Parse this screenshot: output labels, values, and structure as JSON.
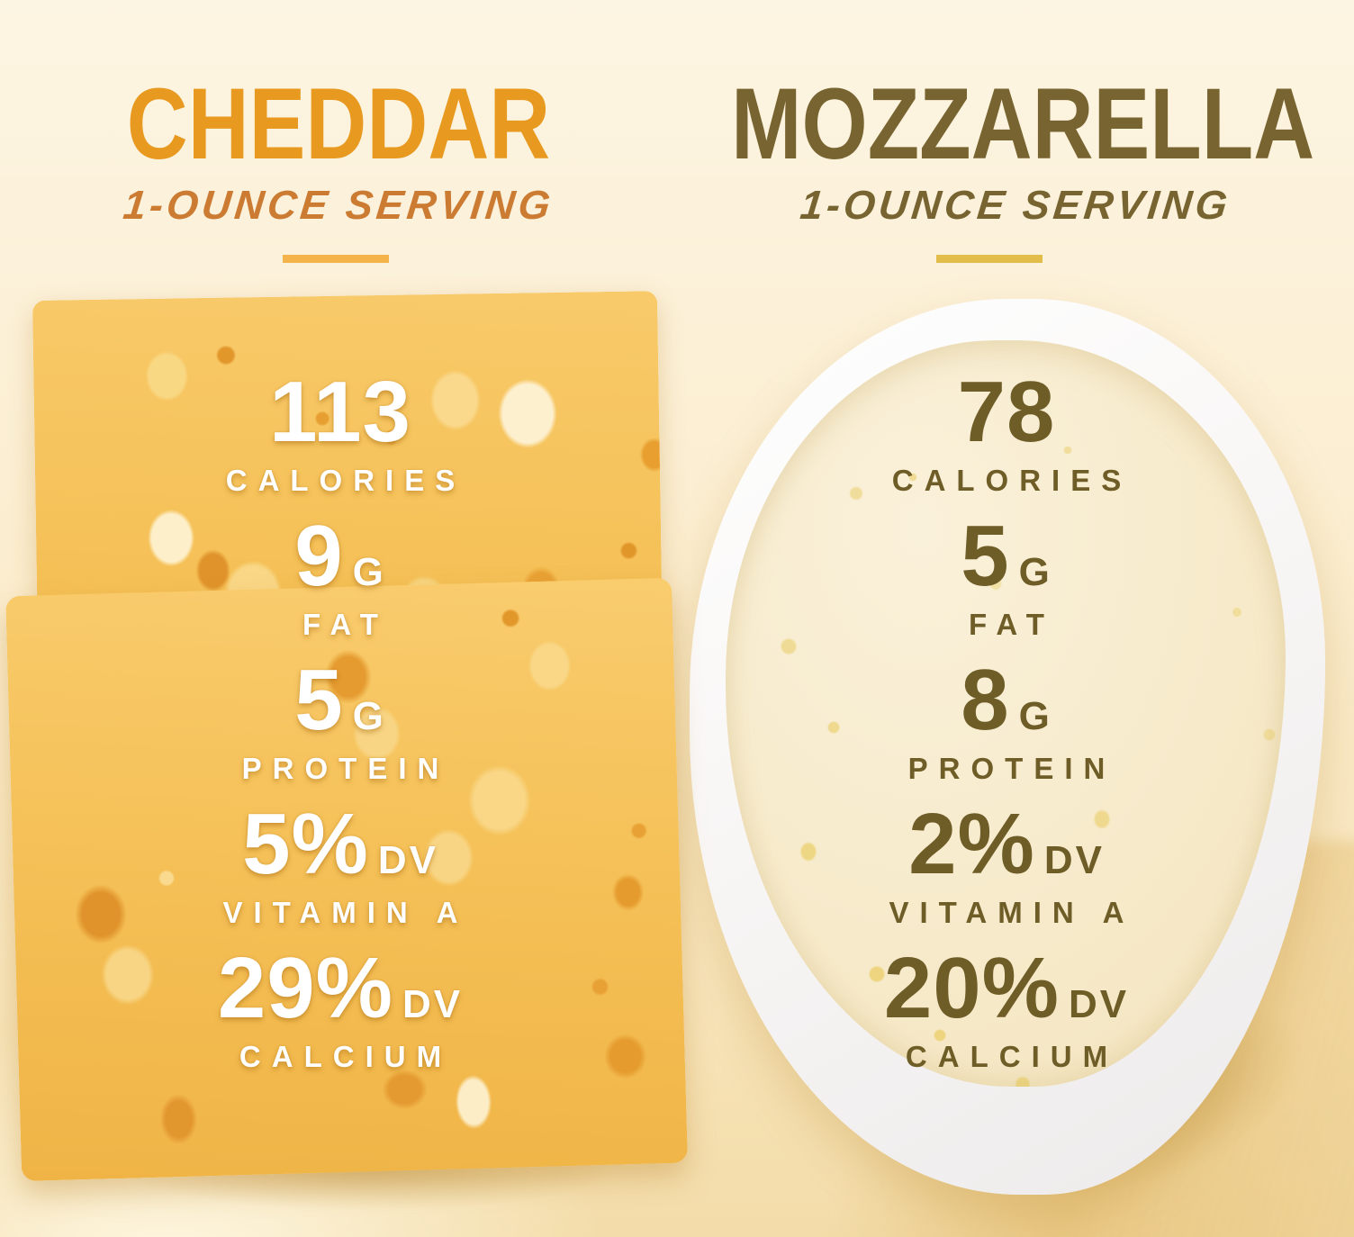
{
  "chart_data": {
    "type": "table",
    "title": "Cheddar vs Mozzarella nutrition, 1-ounce serving",
    "categories": [
      "Calories",
      "Fat (g)",
      "Protein (g)",
      "Vitamin A (% DV)",
      "Calcium (% DV)"
    ],
    "series": [
      {
        "name": "Cheddar",
        "values": [
          113,
          9,
          5,
          5,
          29
        ]
      },
      {
        "name": "Mozzarella",
        "values": [
          78,
          5,
          8,
          2,
          20
        ]
      }
    ],
    "legend_position": "none",
    "grid": false
  },
  "panels": {
    "cheddar": {
      "title": "CHEDDAR",
      "subtitle": "1-OUNCE SERVING",
      "stats": [
        {
          "value": "113",
          "unit": "",
          "label": "CALORIES"
        },
        {
          "value": "9",
          "unit": "G",
          "label": "FAT"
        },
        {
          "value": "5",
          "unit": "G",
          "label": "PROTEIN"
        },
        {
          "value": "5%",
          "unit": "DV",
          "label": "VITAMIN A"
        },
        {
          "value": "29%",
          "unit": "DV",
          "label": "CALCIUM"
        }
      ],
      "colors": {
        "title": "#E8991F",
        "subtitle": "#CC7B33",
        "underline": "#F5B44B",
        "stat_text": "#FFFFFF",
        "cheese_body": "#F4BE52",
        "cheese_hole_dark": "#E2972B",
        "cheese_hole_light": "#F9D786"
      }
    },
    "mozzarella": {
      "title": "MOZZARELLA",
      "subtitle": "1-OUNCE SERVING",
      "stats": [
        {
          "value": "78",
          "unit": "",
          "label": "CALORIES"
        },
        {
          "value": "5",
          "unit": "G",
          "label": "FAT"
        },
        {
          "value": "8",
          "unit": "G",
          "label": "PROTEIN"
        },
        {
          "value": "2%",
          "unit": "DV",
          "label": "VITAMIN A"
        },
        {
          "value": "20%",
          "unit": "DV",
          "label": "CALCIUM"
        }
      ],
      "colors": {
        "title": "#786430",
        "subtitle": "#786430",
        "underline": "#E3BD49",
        "stat_text": "#6F5D28",
        "ball_rim": "#F4F2F1",
        "ball_interior": "#F6E9C8"
      }
    },
    "background": {
      "top": "#FDF5E3",
      "bottom": "#F3DCA9"
    }
  }
}
